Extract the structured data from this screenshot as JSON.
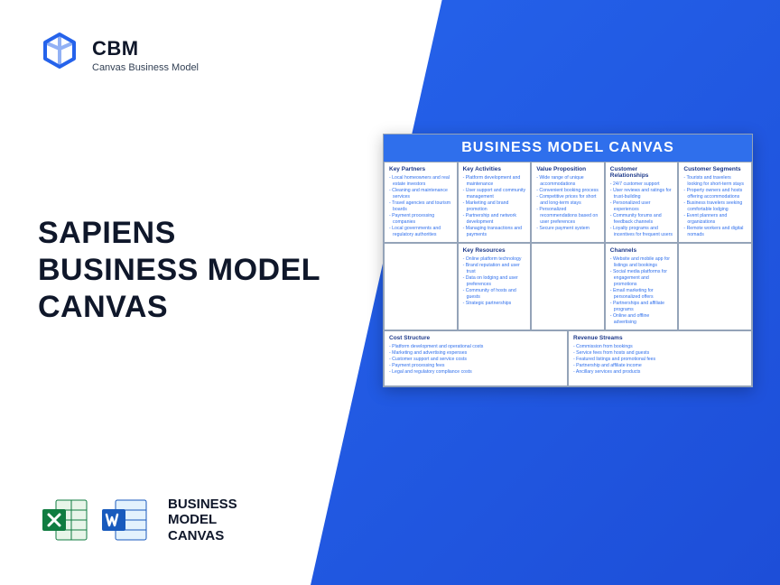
{
  "logo": {
    "title": "CBM",
    "subtitle": "Canvas Business Model"
  },
  "mainTitle": "SAPIENS\nBUSINESS MODEL\nCANVAS",
  "iconsLabel": "BUSINESS\nMODEL\nCANVAS",
  "canvas": {
    "header": "BUSINESS MODEL CANVAS",
    "colors": {
      "accent": "#2f6fec",
      "text": "#1e3a8a",
      "border": "#94a3b8"
    },
    "topRow": [
      {
        "title": "Key Partners",
        "items": [
          "Local homeowners and real estate investors",
          "Cleaning and maintenance services",
          "Travel agencies and tourism boards",
          "Payment processing companies",
          "Local governments and regulatory authorities"
        ]
      },
      {
        "title": "Key Activities",
        "items": [
          "Platform development and maintenance",
          "User support and community management",
          "Marketing and brand promotion",
          "Partnership and network development",
          "Managing transactions and payments"
        ]
      },
      {
        "title": "Value Proposition",
        "items": [
          "Wide range of unique accommodations",
          "Convenient booking process",
          "Competitive prices for short and long-term stays",
          "Personalized recommendations based on user preferences",
          "Secure payment system"
        ]
      },
      {
        "title": "Customer Relationships",
        "items": [
          "24/7 customer support",
          "User reviews and ratings for trust-building",
          "Personalized user experiences",
          "Community forums and feedback channels",
          "Loyalty programs and incentives for frequent users"
        ]
      },
      {
        "title": "Customer Segments",
        "items": [
          "Tourists and travelers looking for short-term stays",
          "Property owners and hosts offering accommodations",
          "Business travelers seeking comfortable lodging",
          "Event planners and organizations",
          "Remote workers and digital nomads"
        ]
      }
    ],
    "midRow": [
      {
        "title": "Key Resources",
        "items": [
          "Online platform technology",
          "Brand reputation and user trust",
          "Data on lodging and user preferences",
          "Community of hosts and guests",
          "Strategic partnerships"
        ]
      },
      {
        "title": "Channels",
        "items": [
          "Website and mobile app for listings and bookings",
          "Social media platforms for engagement and promotions",
          "Email marketing for personalized offers",
          "Partnerships and affiliate programs",
          "Online and offline advertising"
        ]
      }
    ],
    "bottomRow": [
      {
        "title": "Cost Structure",
        "items": [
          "Platform development and operational costs",
          "Marketing and advertising expenses",
          "Customer support and service costs",
          "Payment processing fees",
          "Legal and regulatory compliance costs"
        ]
      },
      {
        "title": "Revenue Streams",
        "items": [
          "Commission from bookings",
          "Service fees from hosts and guests",
          "Featured listings and promotional fees",
          "Partnership and affiliate income",
          "Ancillary services and products"
        ]
      }
    ]
  }
}
